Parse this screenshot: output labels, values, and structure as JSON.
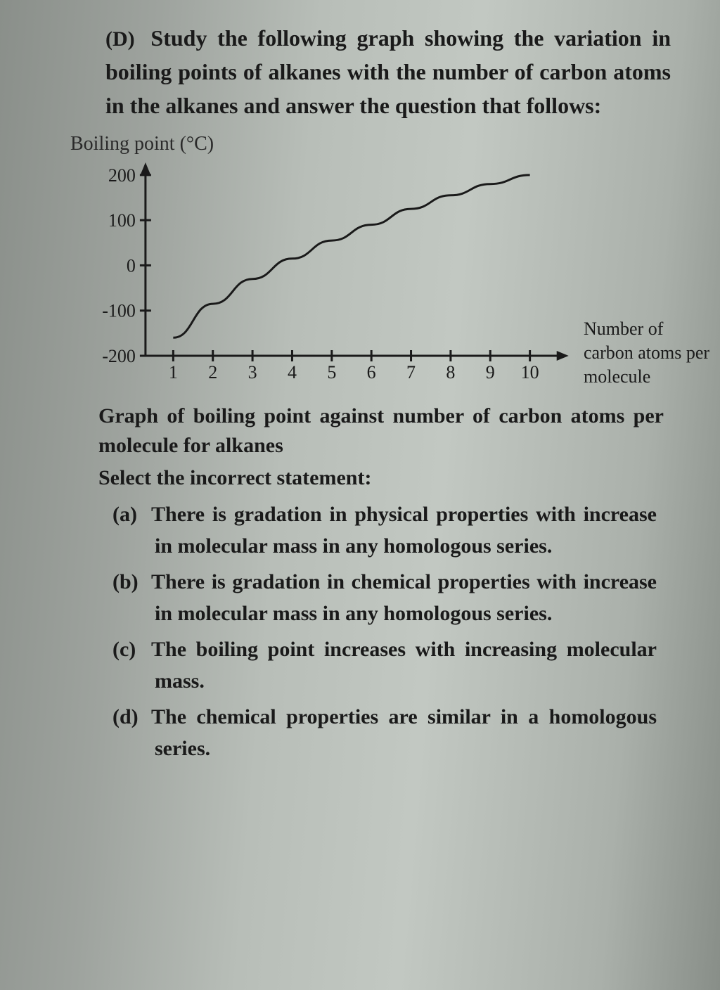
{
  "question": {
    "label": "(D)",
    "text": "Study the following graph showing the variation in boiling points of alkanes with the number of carbon atoms in the alkanes and answer the question that follows:"
  },
  "chart": {
    "type": "line",
    "y_axis_label": "Boiling point (°C)",
    "x_axis_label": "Number of carbon atoms per molecule",
    "y_ticks": [
      200,
      100,
      0,
      -100,
      -200
    ],
    "x_ticks": [
      1,
      2,
      3,
      4,
      5,
      6,
      7,
      8,
      9,
      10
    ],
    "ylim": [
      -200,
      220
    ],
    "xlim": [
      0,
      11
    ],
    "curve_points": [
      {
        "x": 1,
        "y": -160
      },
      {
        "x": 2,
        "y": -85
      },
      {
        "x": 3,
        "y": -30
      },
      {
        "x": 4,
        "y": 15
      },
      {
        "x": 5,
        "y": 55
      },
      {
        "x": 6,
        "y": 90
      },
      {
        "x": 7,
        "y": 125
      },
      {
        "x": 8,
        "y": 155
      },
      {
        "x": 9,
        "y": 180
      },
      {
        "x": 10,
        "y": 200
      }
    ],
    "axis_color": "#1a1a1a",
    "curve_color": "#1a1a1a",
    "axis_width": 3,
    "curve_width": 3,
    "tick_length": 8
  },
  "caption": "Graph of boiling point against number of carbon atoms per molecule for alkanes",
  "instruction": "Select the incorrect statement:",
  "options": [
    {
      "label": "(a)",
      "text": "There is gradation in physical properties with increase in molecular mass in any homologous series."
    },
    {
      "label": "(b)",
      "text": "There is gradation in chemical properties with increase in molecular mass in any homologous series."
    },
    {
      "label": "(c)",
      "text": "The boiling point increases with increasing molecular mass."
    },
    {
      "label": "(d)",
      "text": "The chemical properties are similar in a homologous series."
    }
  ]
}
